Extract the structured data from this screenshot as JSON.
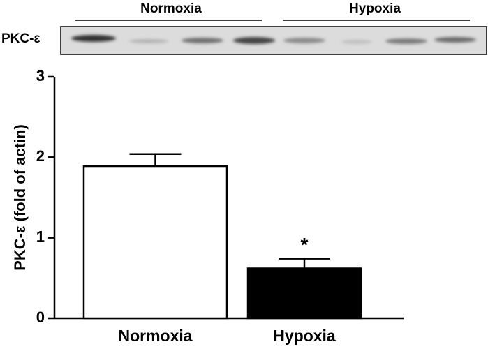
{
  "chart_data": {
    "type": "bar",
    "blot": {
      "label": "PKC-ε",
      "groups": [
        "Normoxia",
        "Hypoxia"
      ]
    },
    "y_label": "PKC-ε (fold of actin)",
    "categories": [
      "Normoxia",
      "Hypoxia"
    ],
    "values": [
      1.89,
      0.62
    ],
    "errors": [
      0.15,
      0.12
    ],
    "colors": [
      "#ffffff",
      "#000000"
    ],
    "annotations": [
      "*"
    ],
    "ylim": [
      0,
      3
    ],
    "yticks": [
      0,
      1,
      2,
      3
    ],
    "grid": false
  }
}
